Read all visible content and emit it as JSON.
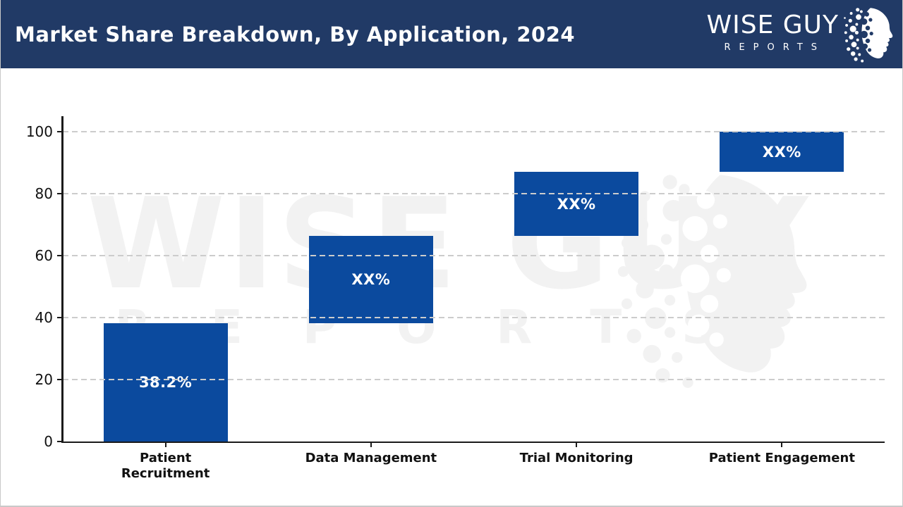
{
  "header": {
    "title": "Market Share Breakdown, By Application, 2024",
    "logo": {
      "line1": "WISE GUY",
      "line2": "REPORTS"
    }
  },
  "watermark": {
    "line1": "WISE GUY",
    "line2": "REPORTS"
  },
  "colors": {
    "header_bg": "#213a66",
    "bar": "#0b4a9e",
    "bar_label": "#ffffff",
    "grid": "#cccccc",
    "axis": "#1a1a1a",
    "watermark": "#f2f2f2"
  },
  "chart_data": {
    "type": "bar",
    "variant": "waterfall-floating",
    "title": "Market Share Breakdown, By Application, 2024",
    "categories": [
      "Patient\nRecruitment",
      "Data Management",
      "Trial Monitoring",
      "Patient Engagement"
    ],
    "segments": [
      {
        "start": 0,
        "end": 38.2,
        "label": "38.2%"
      },
      {
        "start": 38.2,
        "end": 66.4,
        "label": "XX%"
      },
      {
        "start": 66.4,
        "end": 87.0,
        "label": "XX%"
      },
      {
        "start": 87.0,
        "end": 100.0,
        "label": "XX%"
      }
    ],
    "yticks": [
      0,
      20,
      40,
      60,
      80,
      100
    ],
    "ylim": [
      0,
      105
    ],
    "xlabel": "",
    "ylabel": "",
    "grid": "horizontal-dashed",
    "legend": null
  }
}
